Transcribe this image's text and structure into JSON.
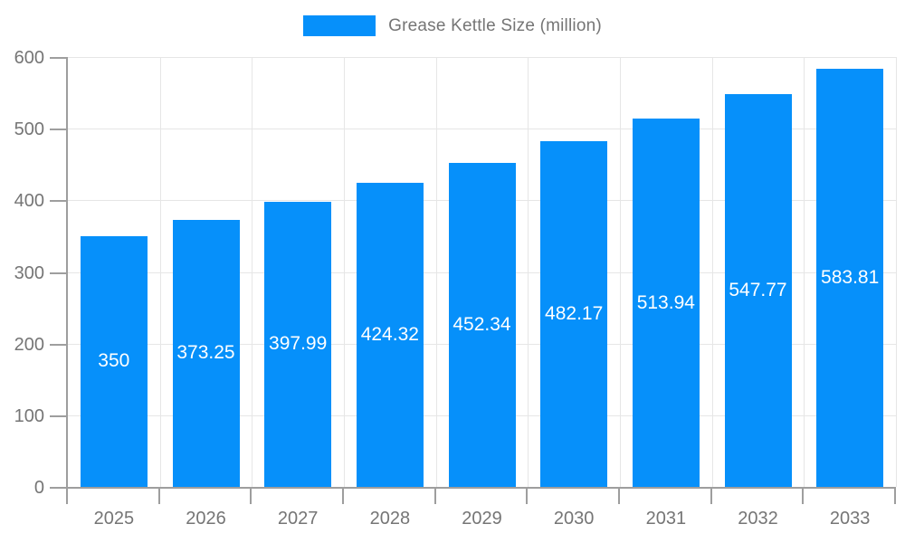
{
  "legend": {
    "label": "Grease Kettle Size (million)"
  },
  "chart_data": {
    "type": "bar",
    "title": "",
    "categories": [
      "2025",
      "2026",
      "2027",
      "2028",
      "2029",
      "2030",
      "2031",
      "2032",
      "2033"
    ],
    "values": [
      350,
      373.25,
      397.99,
      424.32,
      452.34,
      482.17,
      513.94,
      547.77,
      583.81
    ],
    "value_labels": [
      "350",
      "373.25",
      "397.99",
      "424.32",
      "452.34",
      "482.17",
      "513.94",
      "547.77",
      "583.81"
    ],
    "series_name": "Grease Kettle Size (million)",
    "xlabel": "",
    "ylabel": "",
    "ylim": [
      0,
      600
    ],
    "y_ticks": [
      0,
      100,
      200,
      300,
      400,
      500,
      600
    ],
    "grid": true,
    "legend_position": "top-center",
    "value_label_position": "inside-center"
  },
  "colors": {
    "bar": "#0690fa",
    "grid": "#e6e6e6",
    "axis": "#9e9e9e",
    "tick_label": "#757575",
    "legend_text": "#757575",
    "value_label": "#ffffff",
    "background": "#ffffff"
  }
}
